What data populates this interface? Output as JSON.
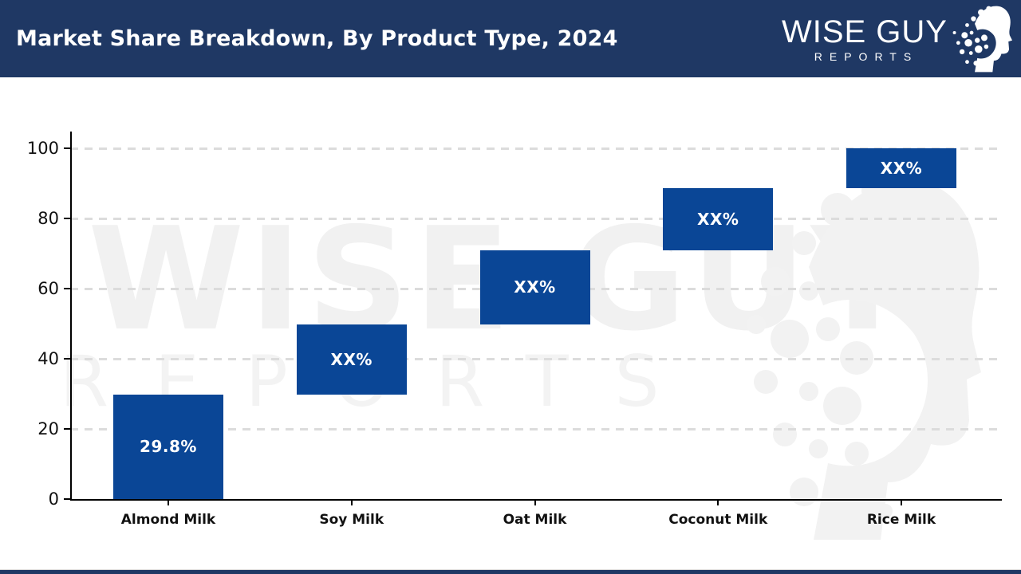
{
  "header": {
    "title": "Market Share Breakdown, By Product Type, 2024",
    "bg_color": "#1f3864",
    "logo": {
      "wordmark": "WISE GUY",
      "subtext": "REPORTS"
    }
  },
  "watermark": {
    "line1": "WISE GUY",
    "line2": "REPORTS"
  },
  "footer": {
    "bar_color": "#1f3864"
  },
  "chart_data": {
    "type": "bar",
    "subtype": "floating-waterfall",
    "title": "Market Share Breakdown, By Product Type, 2024",
    "xlabel": "",
    "ylabel": "",
    "categories": [
      "Almond Milk",
      "Soy Milk",
      "Oat Milk",
      "Coconut Milk",
      "Rice Milk"
    ],
    "segments": [
      {
        "category": "Almond Milk",
        "start": 0,
        "end": 29.8,
        "label": "29.8%"
      },
      {
        "category": "Soy Milk",
        "start": 29.8,
        "end": 49.8,
        "label": "XX%"
      },
      {
        "category": "Oat Milk",
        "start": 49.8,
        "end": 71.0,
        "label": "XX%"
      },
      {
        "category": "Coconut Milk",
        "start": 71.0,
        "end": 88.6,
        "label": "XX%"
      },
      {
        "category": "Rice Milk",
        "start": 88.6,
        "end": 100.0,
        "label": "XX%"
      }
    ],
    "yticks": [
      0,
      20,
      40,
      60,
      80,
      100
    ],
    "ylim": [
      0,
      105
    ],
    "grid": "dashed-horizontal",
    "legend": "none",
    "bar_color": "#0a4696",
    "bar_label_color": "#ffffff"
  }
}
